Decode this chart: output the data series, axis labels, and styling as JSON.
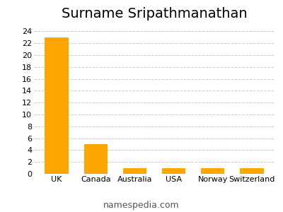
{
  "title": "Surname Sripathmanathan",
  "categories": [
    "UK",
    "Canada",
    "Australia",
    "USA",
    "Norway",
    "Switzerland"
  ],
  "values": [
    23,
    5,
    1,
    1,
    1,
    1
  ],
  "bar_color": "#FFA500",
  "background_color": "#ffffff",
  "ylim": [
    0,
    25
  ],
  "yticks": [
    0,
    2,
    4,
    6,
    8,
    10,
    12,
    14,
    16,
    18,
    20,
    22,
    24
  ],
  "grid_color": "#cccccc",
  "title_fontsize": 14,
  "tick_fontsize": 8,
  "watermark": "namespedia.com",
  "watermark_fontsize": 9,
  "watermark_color": "#555555"
}
